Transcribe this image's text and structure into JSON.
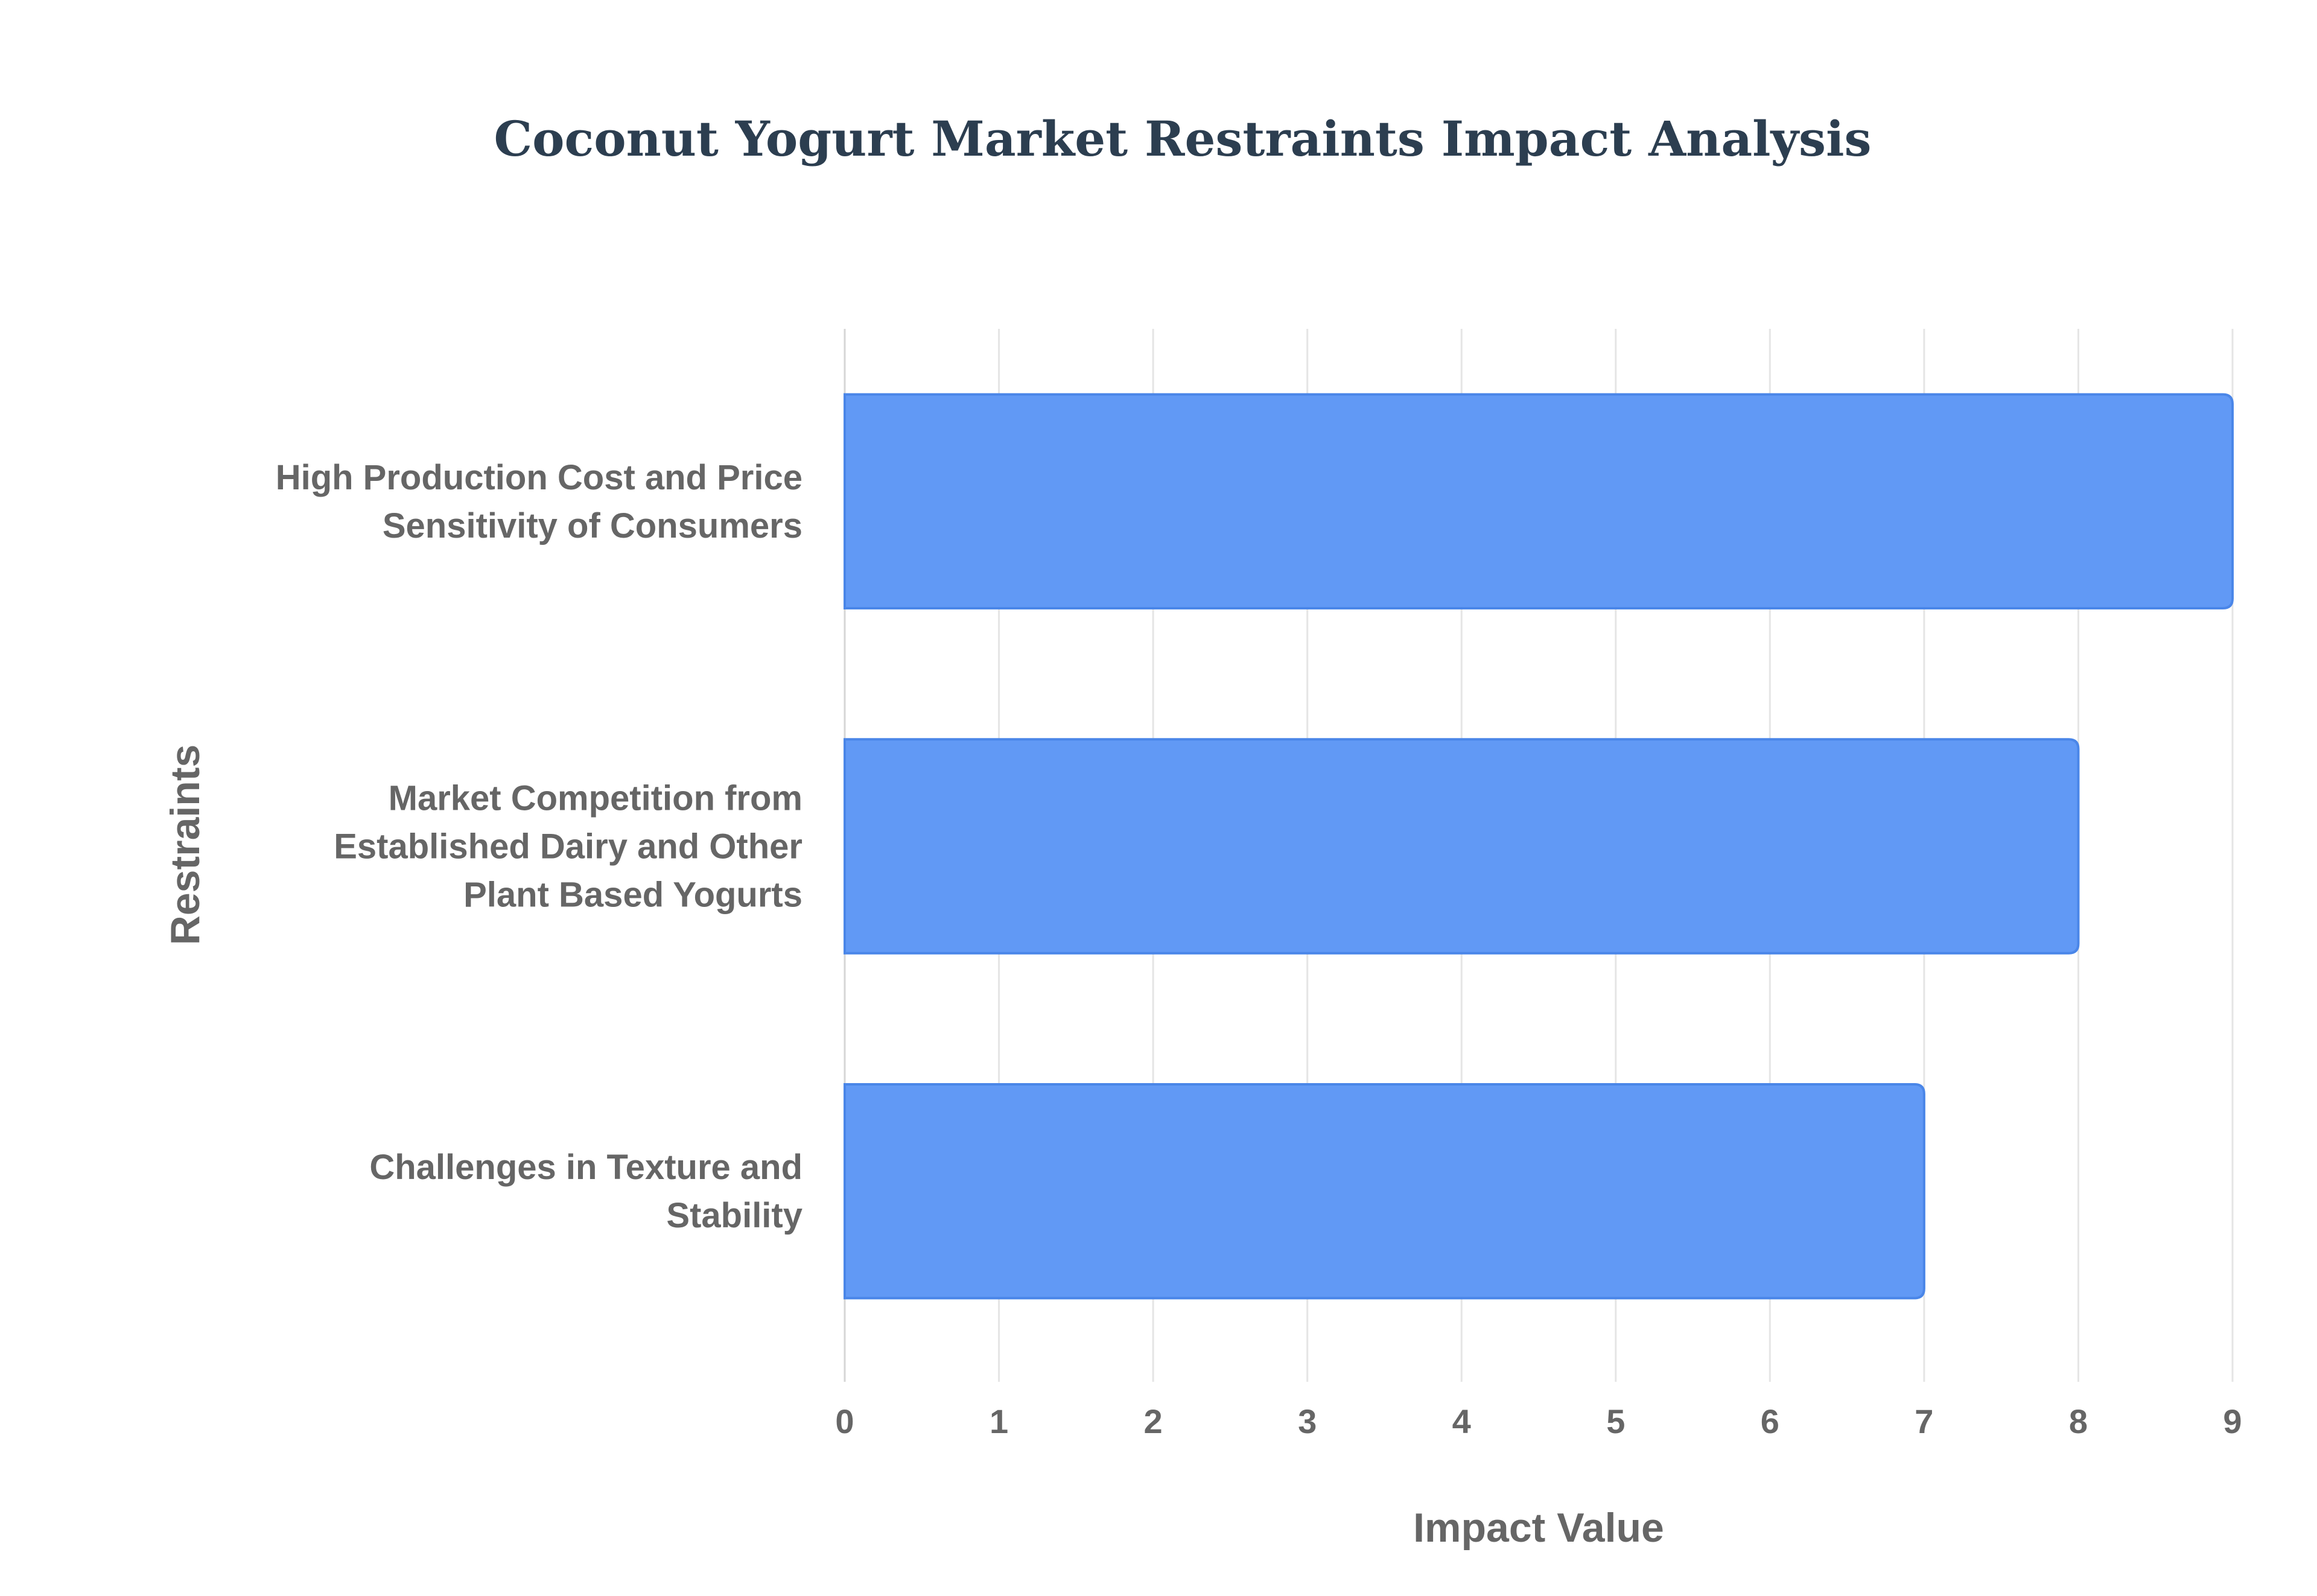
{
  "chart_data": {
    "type": "bar",
    "orientation": "horizontal",
    "title": "Coconut Yogurt Market Restraints Impact Analysis",
    "xlabel": "Impact Value",
    "ylabel": "Restraints",
    "xlim": [
      0,
      9
    ],
    "x_ticks": [
      0,
      1,
      2,
      3,
      4,
      5,
      6,
      7,
      8,
      9
    ],
    "grid": true,
    "legend": "none",
    "categories": [
      [
        "High Production Cost and Price",
        "Sensitivity of Consumers"
      ],
      [
        "Market Competition from",
        "Established Dairy and Other",
        "Plant Based Yogurts"
      ],
      [
        "Challenges in Texture and",
        "Stability"
      ]
    ],
    "values": [
      9,
      8,
      7
    ],
    "colors": {
      "bar_fill": "#6199f5",
      "bar_stroke": "#4a86e8",
      "title": "#2c3e50",
      "text": "#666666",
      "grid": "#e5e5e5"
    }
  }
}
